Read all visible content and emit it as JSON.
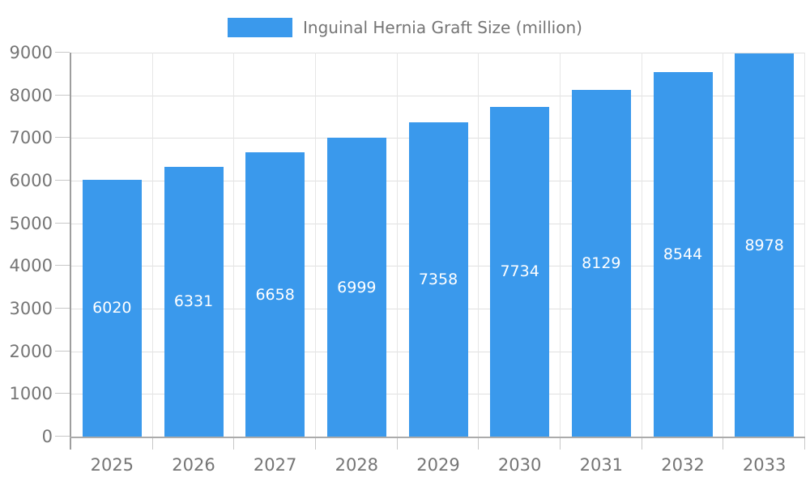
{
  "page": {
    "background": "#ffffff"
  },
  "legend": {
    "label": "Inguinal Hernia Graft Size (million)",
    "swatch_color": "#3A99EC",
    "text_color": "#757575",
    "position": "top-center"
  },
  "chart_data": {
    "type": "bar",
    "title": "Inguinal Hernia Graft Size (million)",
    "series_name": "Inguinal Hernia Graft Size (million)",
    "categories": [
      "2025",
      "2026",
      "2027",
      "2028",
      "2029",
      "2030",
      "2031",
      "2032",
      "2033"
    ],
    "values": [
      6020,
      6331,
      6658,
      6999,
      7358,
      7734,
      8129,
      8544,
      8978
    ],
    "value_labels": [
      "6020",
      "6331",
      "6658",
      "6999",
      "7358",
      "7734",
      "8129",
      "8544",
      "8978"
    ],
    "value_label_position": "inside-middle",
    "xlabel": "",
    "ylabel": "",
    "ylim": [
      0,
      9000
    ],
    "ytick_interval": 1000,
    "yticks": [
      0,
      1000,
      2000,
      3000,
      4000,
      5000,
      6000,
      7000,
      8000,
      9000
    ],
    "ytick_labels": [
      "0",
      "1000",
      "2000",
      "3000",
      "4000",
      "5000",
      "6000",
      "7000",
      "8000",
      "9000"
    ],
    "grid": true,
    "legend_position": "top",
    "colors": {
      "bar": "#3A99EC",
      "value_text": "#ffffff",
      "axis_text": "#757575",
      "gridline_h": "#e0e0e0",
      "gridline_v": "#e6e6e6",
      "tick": "#c8c8c8",
      "y_axis_line": "#9e9e9e",
      "x_axis_line": "#ababab"
    }
  }
}
